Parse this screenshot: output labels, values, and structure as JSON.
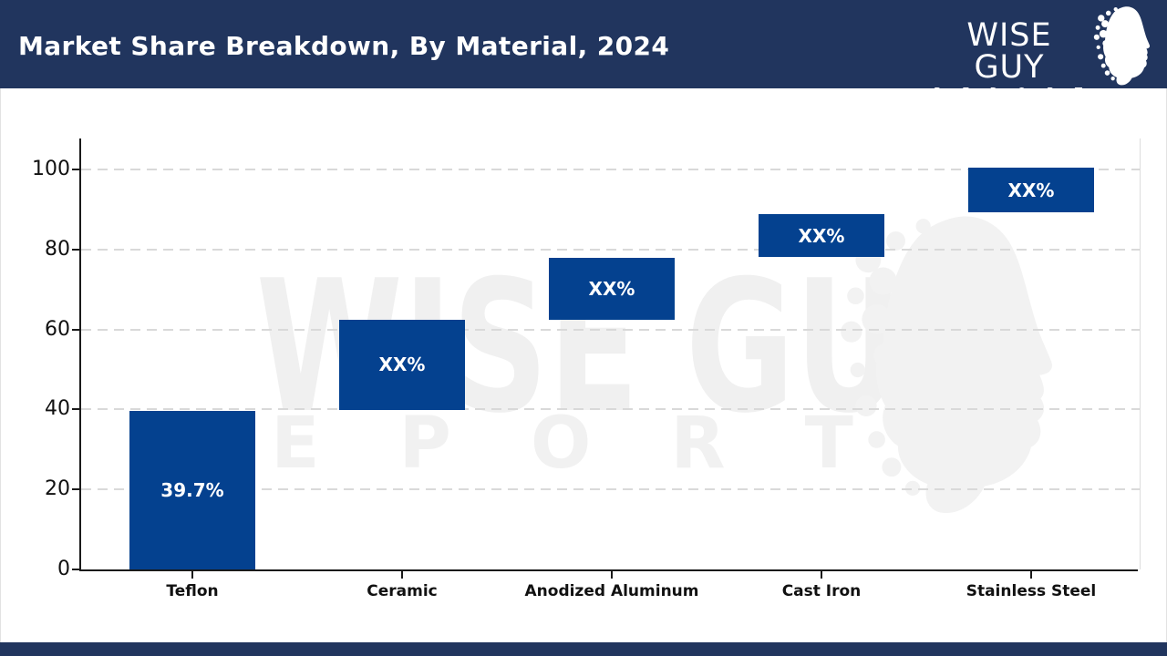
{
  "header": {
    "title": "Market Share Breakdown, By Material, 2024",
    "background": "#21355E",
    "logo": {
      "line1": "WISE GUY",
      "line2": "R E P O R T S"
    }
  },
  "watermark": {
    "line1": "WISE GUY",
    "line2": "R E P O R T S"
  },
  "footer": {
    "background": "#21355E"
  },
  "colors": {
    "header_bg": "#21355E",
    "bar": "#04418F",
    "grid": "#D9D9D9",
    "axis": "#1A1A1A",
    "watermark": "#F1F1F1",
    "bar_label": "#FFFFFF"
  },
  "chart_data": {
    "type": "bar",
    "subtype": "waterfall",
    "categories": [
      "Teflon",
      "Ceramic",
      "Anodized Aluminum",
      "Cast Iron",
      "Stainless Steel"
    ],
    "series": [
      {
        "category": "Teflon",
        "start": 0,
        "end": 39.7,
        "label": "39.7%"
      },
      {
        "category": "Ceramic",
        "start": 39.9,
        "end": 62.4,
        "label": "XX%"
      },
      {
        "category": "Anodized Aluminum",
        "start": 62.4,
        "end": 77.9,
        "label": "XX%"
      },
      {
        "category": "Cast Iron",
        "start": 78.1,
        "end": 88.8,
        "label": "XX%"
      },
      {
        "category": "Stainless Steel",
        "start": 89.3,
        "end": 100.4,
        "label": "XX%"
      }
    ],
    "yticks": [
      0,
      20,
      40,
      60,
      80,
      100
    ],
    "ylim": [
      0,
      107
    ],
    "bar_color": "#04418F",
    "label_color": "#FFFFFF",
    "grid": {
      "axis": "y",
      "style": "dashed",
      "color": "#D9D9D9",
      "legend": "none"
    }
  }
}
